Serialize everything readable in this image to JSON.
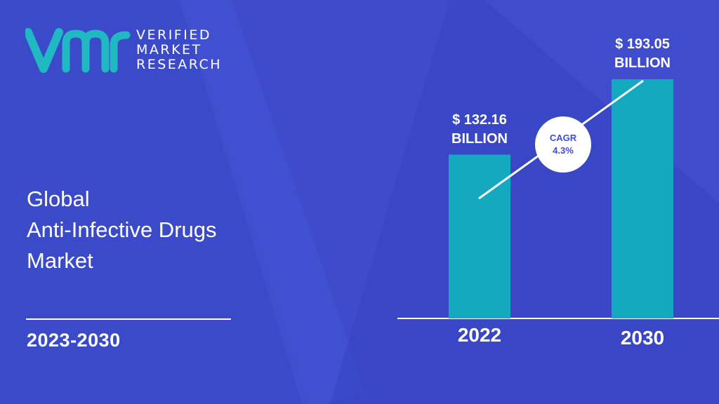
{
  "brand": {
    "line1": "VERIFIED",
    "line2": "MARKET",
    "line3": "RESEARCH",
    "logo_color": "#1fb8c3"
  },
  "heading": {
    "line1": "Global",
    "line2": "Anti-Infective Drugs",
    "line3": "Market"
  },
  "period": "2023-2030",
  "colors": {
    "background": "#3e4ccc",
    "bar": "#13a9bf",
    "text": "#ffffff"
  },
  "chart_data": {
    "type": "bar",
    "categories": [
      "2022",
      "2030"
    ],
    "values": [
      132.16,
      193.05
    ],
    "value_labels": [
      {
        "line1": "$ 132.16",
        "line2": "BILLION"
      },
      {
        "line1": "$ 193.05",
        "line2": "BILLION"
      }
    ],
    "annotation": {
      "line1": "CAGR",
      "line2": "4.3%"
    },
    "ylim": [
      0,
      193.05
    ],
    "grid": false,
    "legend": "none"
  }
}
